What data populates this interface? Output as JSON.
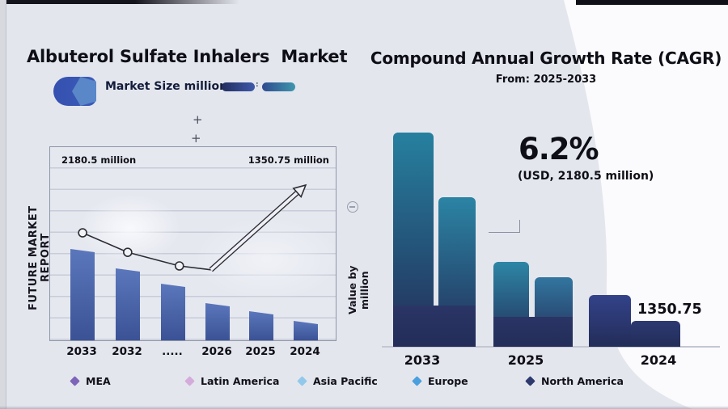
{
  "header": {
    "title": "Albuterol Sulfate Inhalers  Market",
    "legend_label": "Market Size million",
    "ratio_colon": ":"
  },
  "left_panel": {
    "side_label": "FUTURE MARKET REPORT",
    "axis_label": "Value by million",
    "annotation_left": "2180.5 million",
    "annotation_right": "1350.75 million",
    "plus_top": "+",
    "plus_bottom": "+"
  },
  "right_panel": {
    "title": "Compound Annual Growth Rate (CAGR)",
    "subtitle": "From: 2025-2033",
    "cagr": "6.2%",
    "cagr_detail": "(USD, 2180.5 million)",
    "value_2024": "1350.75"
  },
  "legend": {
    "items": [
      {
        "label": "MEA",
        "color": "#7e64b8"
      },
      {
        "label": "Latin America",
        "color": "#d4acdb"
      },
      {
        "label": "Asia Pacific",
        "color": "#92c9ea"
      },
      {
        "label": "Europe",
        "color": "#4aa0de"
      },
      {
        "label": "North America",
        "color": "#2c3a6e"
      }
    ]
  },
  "chart_data": [
    {
      "type": "bar",
      "name": "market-size-by-year",
      "title": "Market Size million",
      "categories": [
        "2033",
        "2032",
        ".....",
        "2026",
        "2025",
        "2024"
      ],
      "bar_heights_norm": [
        0.47,
        0.37,
        0.29,
        0.19,
        0.15,
        0.1
      ],
      "known_values_million": {
        "2033": 2180.5,
        "2024": 1350.75
      },
      "annotation_left": "2180.5 million",
      "annotation_right": "1350.75 million",
      "bar_color_top": "#5b77bc",
      "bar_color_bottom": "#3b5295",
      "gridlines": true,
      "trend_line": {
        "points_frac": [
          [
            0.113,
            0.44
          ],
          [
            0.27,
            0.54
          ],
          [
            0.45,
            0.61
          ],
          [
            0.56,
            0.63
          ]
        ],
        "arrow_end_frac": [
          0.89,
          0.195
        ],
        "marker_count": 3
      }
    },
    {
      "type": "bar",
      "name": "cagr-regional-bars",
      "title": "Compound Annual Growth Rate (CAGR)",
      "subtitle": "From: 2025-2033",
      "cagr_percent": 6.2,
      "period": "2025-2033",
      "categories": [
        "2033",
        "2025",
        "2024"
      ],
      "series": [
        {
          "name": "series-a",
          "heights_norm": [
            0.99,
            0.39,
            0.24
          ]
        },
        {
          "name": "series-b",
          "heights_norm": [
            0.69,
            0.32,
            0.12
          ]
        }
      ],
      "projected_value_million_2033": 2180.5,
      "base_value_million_2024": 1350.75,
      "bar_top_colors": [
        [
          "#26809f",
          "#2b84a4"
        ],
        [
          "#2d86a6",
          "#32769f"
        ],
        [
          "#33428a",
          "#2c3a72"
        ]
      ],
      "bar_bottom_color": "#232d58"
    }
  ],
  "colors": {
    "background": "#e4e6ee",
    "panel_border": "#8e96a8",
    "accent_navy": "#2c3a6e",
    "accent_teal": "#2b82a3"
  }
}
